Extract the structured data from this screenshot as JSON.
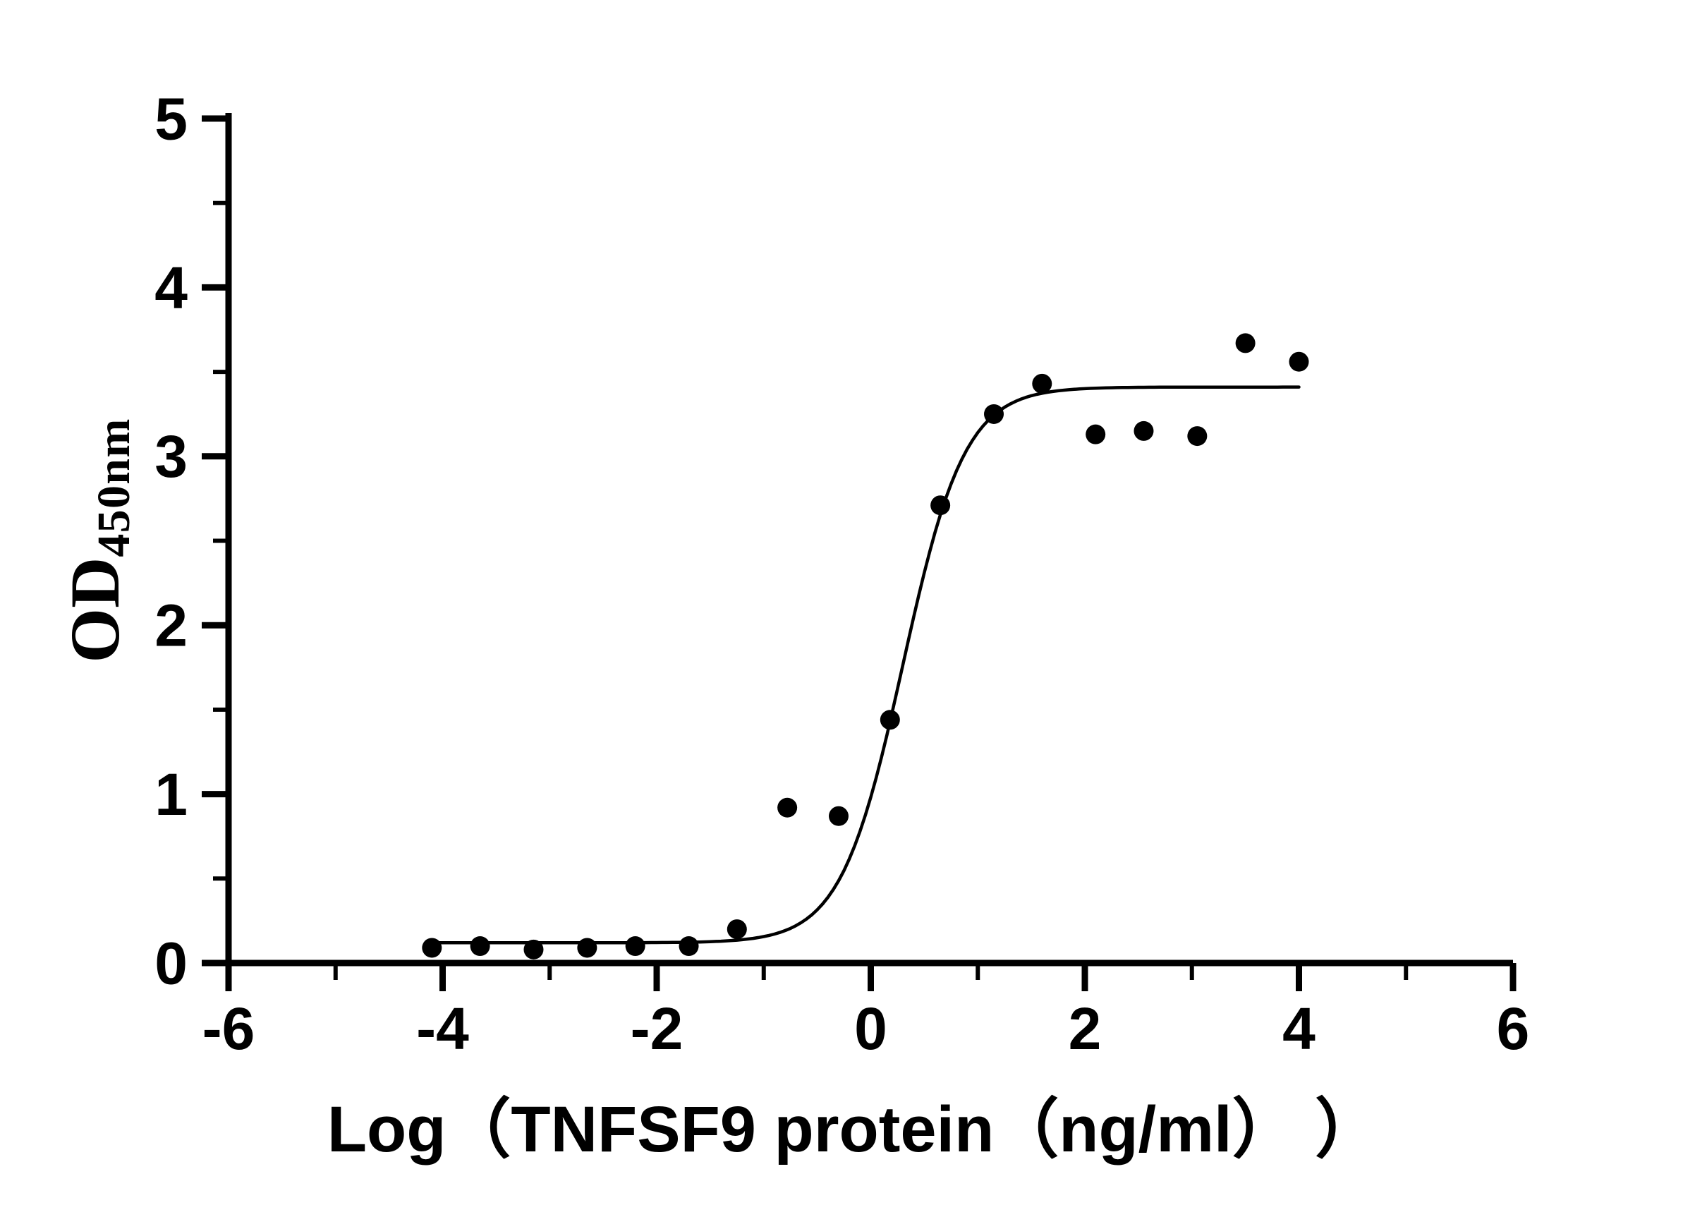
{
  "figure": {
    "background_color": "#ffffff",
    "foreground_color": "#000000"
  },
  "chart_data": {
    "type": "scatter",
    "title": "",
    "xlabel": "Log（TNFSF9 protein（ng/ml） ）",
    "ylabel": "OD",
    "ylabel_subscript": "450nm",
    "xlim": [
      -6,
      6
    ],
    "ylim": [
      0,
      5
    ],
    "x_ticks": [
      -6,
      -4,
      -2,
      0,
      2,
      4,
      6
    ],
    "x_minor_ticks": [
      -5,
      -3,
      -1,
      1,
      3,
      5
    ],
    "y_ticks": [
      0,
      1,
      2,
      3,
      4,
      5
    ],
    "y_minor_ticks": [
      0.5,
      1.5,
      2.5,
      3.5,
      4.5
    ],
    "grid": false,
    "legend": "none",
    "marker": "filled-circle",
    "series_color": "#000000",
    "points": [
      [
        -4.1,
        0.09
      ],
      [
        -3.65,
        0.1
      ],
      [
        -3.15,
        0.08
      ],
      [
        -2.65,
        0.09
      ],
      [
        -2.2,
        0.1
      ],
      [
        -1.7,
        0.1
      ],
      [
        -1.25,
        0.2
      ],
      [
        -0.78,
        0.92
      ],
      [
        -0.3,
        0.87
      ],
      [
        0.18,
        1.44
      ],
      [
        0.65,
        2.71
      ],
      [
        1.15,
        3.25
      ],
      [
        1.6,
        3.43
      ],
      [
        2.1,
        3.13
      ],
      [
        2.55,
        3.15
      ],
      [
        3.05,
        3.12
      ],
      [
        3.5,
        3.67
      ],
      [
        4.0,
        3.56
      ]
    ],
    "fit_curve": {
      "model": "four-parameter-logistic",
      "bottom": 0.12,
      "top": 3.41,
      "logEC50": 0.3,
      "hill_slope": 1.5,
      "x_start": -4.15,
      "x_end": 4.0
    }
  }
}
